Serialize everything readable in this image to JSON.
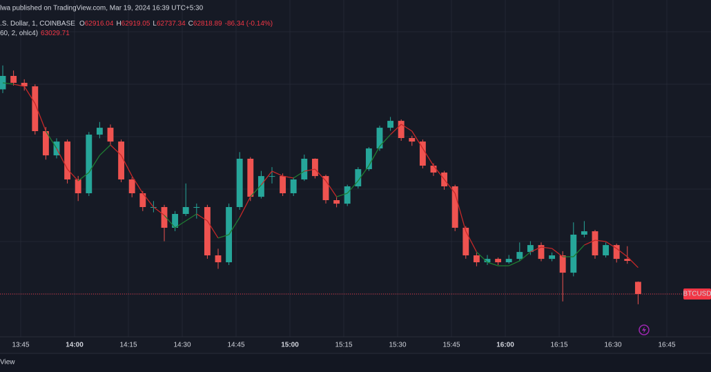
{
  "header": {
    "published": "lwa published on TradingView.com, Mar 19, 2024 16:39 UTC+5:30",
    "symbol": ".S. Dollar, 1, COINBASE",
    "ohlc_labels": [
      "O",
      "H",
      "L",
      "C"
    ],
    "change": "-86.34 (-0.14%)",
    "indicator": "60, 2, ohlc4)"
  },
  "chart_data": {
    "type": "candlestick",
    "x": [
      "13:40",
      "13:43",
      "13:46",
      "13:49",
      "13:52",
      "13:55",
      "13:58",
      "14:01",
      "14:04",
      "14:07",
      "14:10",
      "14:13",
      "14:16",
      "14:19",
      "14:22",
      "14:25",
      "14:28",
      "14:31",
      "14:34",
      "14:37",
      "14:40",
      "14:43",
      "14:46",
      "14:49",
      "14:52",
      "14:55",
      "14:58",
      "15:01",
      "15:04",
      "15:07",
      "15:10",
      "15:13",
      "15:16",
      "15:19",
      "15:22",
      "15:25",
      "15:28",
      "15:31",
      "15:34",
      "15:37",
      "15:40",
      "15:43",
      "15:46",
      "15:49",
      "15:52",
      "15:55",
      "15:58",
      "16:01",
      "16:04",
      "16:07",
      "16:10",
      "16:13",
      "16:16",
      "16:19",
      "16:22",
      "16:25",
      "16:28",
      "16:31",
      "16:34",
      "16:37"
    ],
    "ohlc": [
      [
        64450,
        64640,
        64420,
        64557
      ],
      [
        64557,
        64600,
        64480,
        64502
      ],
      [
        64502,
        64530,
        64440,
        64474
      ],
      [
        64474,
        64490,
        64090,
        64117
      ],
      [
        64117,
        64150,
        63890,
        63924
      ],
      [
        63924,
        64060,
        63900,
        64034
      ],
      [
        64034,
        64050,
        63700,
        63732
      ],
      [
        63732,
        63760,
        63560,
        63622
      ],
      [
        63622,
        64110,
        63600,
        64089
      ],
      [
        64089,
        64190,
        64060,
        64144
      ],
      [
        64144,
        64170,
        64010,
        64034
      ],
      [
        64034,
        64050,
        63710,
        63732
      ],
      [
        63732,
        63750,
        63590,
        63622
      ],
      [
        63622,
        63640,
        63480,
        63512
      ],
      [
        63512,
        63560,
        63470,
        63512
      ],
      [
        63512,
        63530,
        63240,
        63347
      ],
      [
        63347,
        63480,
        63320,
        63457
      ],
      [
        63457,
        63700,
        63440,
        63512
      ],
      [
        63512,
        63540,
        63420,
        63512
      ],
      [
        63512,
        63530,
        63100,
        63127
      ],
      [
        63127,
        63180,
        63020,
        63072
      ],
      [
        63072,
        63540,
        63050,
        63512
      ],
      [
        63512,
        63950,
        63490,
        63897
      ],
      [
        63897,
        63910,
        63560,
        63594
      ],
      [
        63594,
        63800,
        63580,
        63759
      ],
      [
        63759,
        63830,
        63700,
        63759
      ],
      [
        63759,
        63780,
        63600,
        63622
      ],
      [
        63622,
        63750,
        63600,
        63732
      ],
      [
        63732,
        63930,
        63720,
        63897
      ],
      [
        63897,
        63900,
        63740,
        63759
      ],
      [
        63759,
        63770,
        63540,
        63567
      ],
      [
        63567,
        63590,
        63510,
        63539
      ],
      [
        63539,
        63690,
        63520,
        63677
      ],
      [
        63677,
        63830,
        63660,
        63814
      ],
      [
        63814,
        63990,
        63800,
        63979
      ],
      [
        63979,
        64160,
        63960,
        64144
      ],
      [
        64144,
        64230,
        64120,
        64199
      ],
      [
        64199,
        64210,
        64040,
        64062
      ],
      [
        64062,
        64080,
        64000,
        64034
      ],
      [
        64034,
        64050,
        63820,
        63842
      ],
      [
        63842,
        63860,
        63760,
        63787
      ],
      [
        63787,
        63800,
        63650,
        63677
      ],
      [
        63677,
        63690,
        63320,
        63347
      ],
      [
        63347,
        63360,
        63100,
        63127
      ],
      [
        63127,
        63150,
        63040,
        63072
      ],
      [
        63072,
        63130,
        63050,
        63099
      ],
      [
        63099,
        63110,
        63050,
        63072
      ],
      [
        63072,
        63130,
        63060,
        63099
      ],
      [
        63099,
        63230,
        63080,
        63154
      ],
      [
        63154,
        63240,
        63130,
        63209
      ],
      [
        63209,
        63230,
        63080,
        63099
      ],
      [
        63099,
        63150,
        63080,
        63127
      ],
      [
        63127,
        63160,
        62760,
        62989
      ],
      [
        62989,
        63390,
        62960,
        63292
      ],
      [
        63292,
        63400,
        63270,
        63319
      ],
      [
        63319,
        63330,
        63100,
        63127
      ],
      [
        63127,
        63230,
        63110,
        63209
      ],
      [
        63209,
        63220,
        63070,
        63099
      ],
      [
        63099,
        63200,
        63060,
        63083
      ],
      [
        62916.04,
        62919.05,
        62737.34,
        62818.89
      ]
    ],
    "ma_values": [
      64502,
      64491,
      64474,
      64337,
      64117,
      63979,
      63814,
      63721,
      63787,
      63924,
      64007,
      63924,
      63759,
      63622,
      63512,
      63446,
      63347,
      63402,
      63457,
      63402,
      63265,
      63292,
      63429,
      63594,
      63688,
      63798,
      63759,
      63743,
      63798,
      63814,
      63721,
      63594,
      63622,
      63721,
      63842,
      63996,
      64089,
      64172,
      64117,
      63979,
      63842,
      63732,
      63622,
      63319,
      63154,
      63072,
      63044,
      63044,
      63083,
      63154,
      63193,
      63182,
      63116,
      63116,
      63209,
      63248,
      63237,
      63182,
      63116,
      63029.71
    ],
    "up_color": "#26a69a",
    "down_color": "#ef5350",
    "ma_rising_color": "#1e7d32",
    "ma_falling_color": "#c62828",
    "ylim": [
      62467,
      65052
    ],
    "xticks": [
      "13:45",
      "14:00",
      "14:15",
      "14:30",
      "14:45",
      "15:00",
      "15:15",
      "15:30",
      "15:45",
      "16:00",
      "16:15",
      "16:30",
      "16:45"
    ],
    "price_label": "BTCUSD",
    "grid": true
  },
  "footer": {
    "text": "View"
  }
}
